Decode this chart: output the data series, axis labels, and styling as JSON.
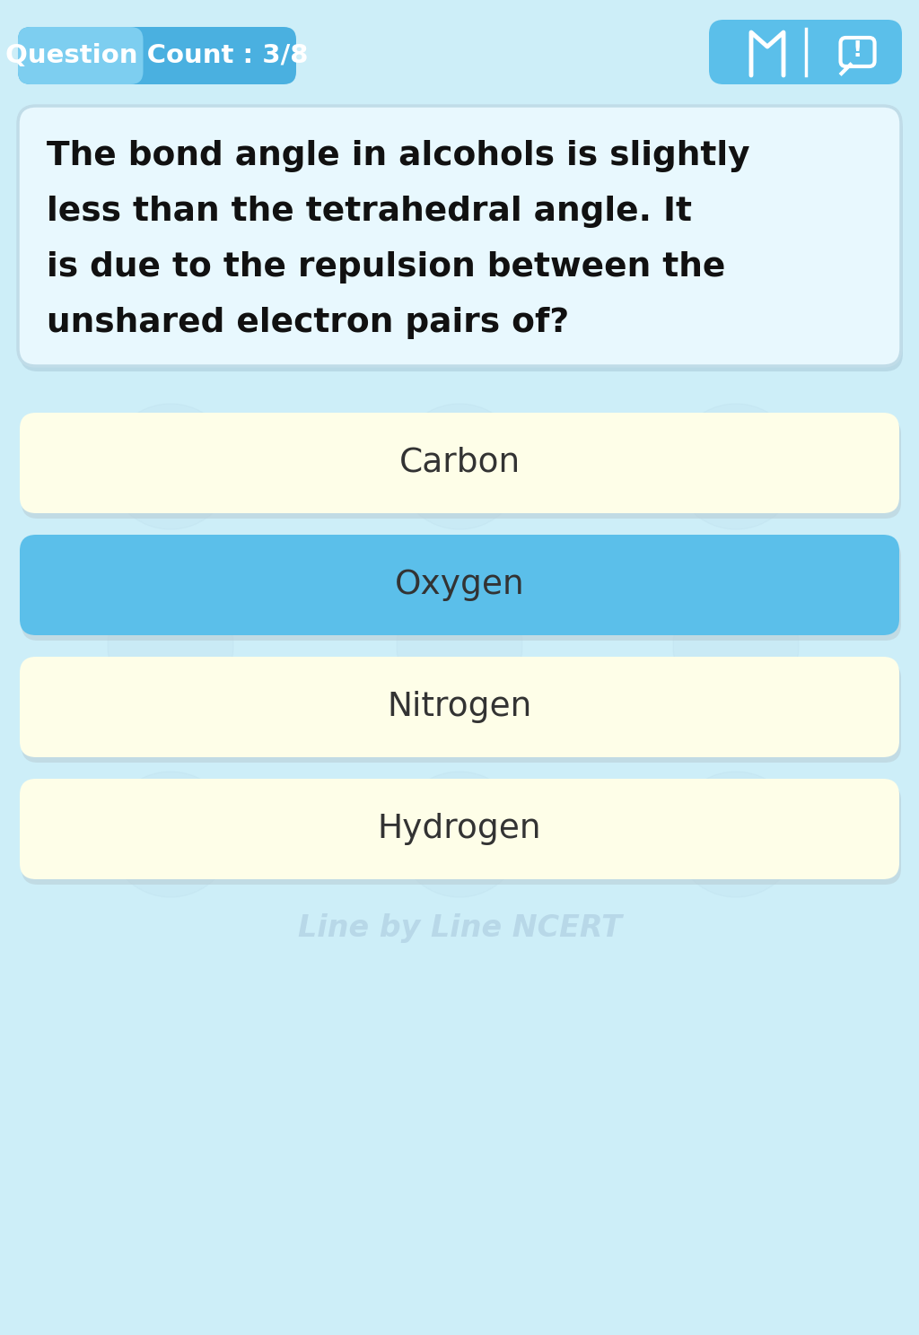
{
  "background_color": "#cdeef8",
  "header_label": "Question Count : 3/8",
  "header_bg_left": "#7dcef0",
  "header_bg_right": "#4ab0e0",
  "header_text_color": "#ffffff",
  "question_text_lines": [
    "The bond angle in alcohols is slightly",
    "less than the tetrahedral angle. It",
    "is due to the repulsion between the",
    "unshared electron pairs of?"
  ],
  "question_bg": "#e8f8fe",
  "question_border": "#c0dce8",
  "question_text_color": "#111111",
  "options": [
    "Carbon",
    "Oxygen",
    "Nitrogen",
    "Hydrogen"
  ],
  "option_colors": [
    "#fefee8",
    "#5bbfea",
    "#fefee8",
    "#fefee8"
  ],
  "option_shadow_color": "#b8ccd4",
  "option_text_color": "#333333",
  "watermark_text": "Line by Line NCERT",
  "watermark_color": "#b8d8e8",
  "icon_bg": "#5bbfea",
  "icon_separator_color": "#ffffff",
  "shadow_color": "#a8c8d8"
}
